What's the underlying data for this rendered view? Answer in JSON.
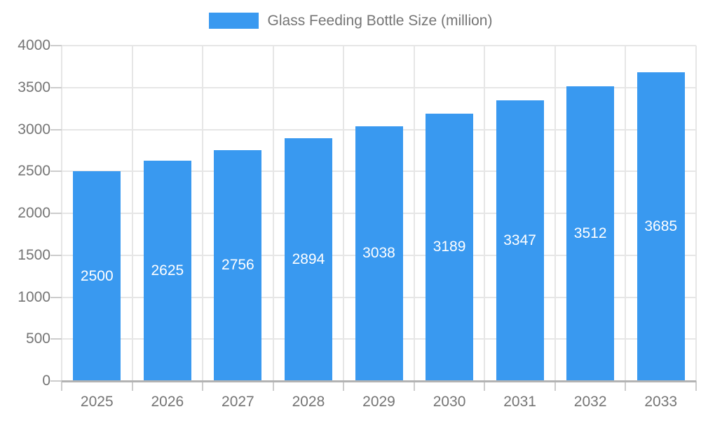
{
  "legend": {
    "label": "Glass Feeding Bottle Size (million)",
    "swatch_color": "#3999f0"
  },
  "chart_data": {
    "type": "bar",
    "title": "Glass Feeding Bottle Size (million)",
    "categories": [
      "2025",
      "2026",
      "2027",
      "2028",
      "2029",
      "2030",
      "2031",
      "2032",
      "2033"
    ],
    "values": [
      2500,
      2625,
      2756,
      2894,
      3038,
      3189,
      3347,
      3512,
      3685
    ],
    "value_labels": [
      "2500",
      "2625",
      "2756",
      "2894",
      "3038",
      "3189",
      "3347",
      "3512",
      "3685"
    ],
    "xlabel": "",
    "ylabel": "",
    "ylim": [
      0,
      4000
    ],
    "yticks": [
      0,
      500,
      1000,
      1500,
      2000,
      2500,
      3000,
      3500,
      4000
    ],
    "ytick_labels": [
      "0",
      "500",
      "1000",
      "1500",
      "2000",
      "2500",
      "3000",
      "3500",
      "4000"
    ],
    "grid": true,
    "legend_position": "top-center",
    "bar_color": "#3999f0",
    "value_label_color": "#ffffff"
  },
  "colors": {
    "bar": "#3999f0",
    "grid": "#e6e6e6",
    "baseline": "#b3b3b3",
    "tick": "#cccccc",
    "axis_text": "#757575",
    "background": "#ffffff"
  }
}
